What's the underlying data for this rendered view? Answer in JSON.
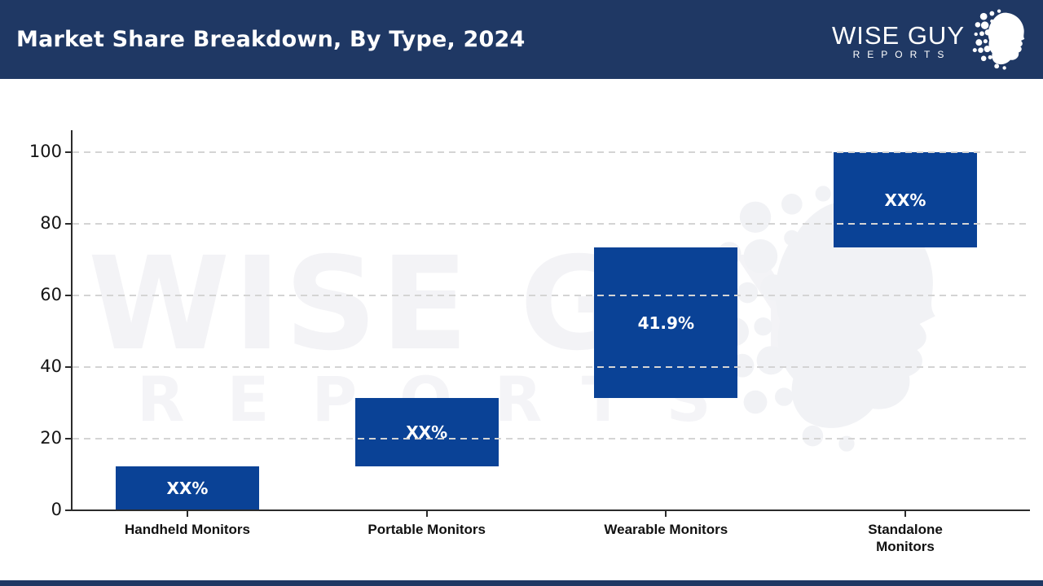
{
  "header": {
    "title": "Market Share Breakdown, By Type, 2024",
    "logo": {
      "brand": "WISE GUY",
      "sub": "REPORTS"
    }
  },
  "watermark": {
    "brand": "WISE GUY",
    "sub": "REPORTS"
  },
  "chart_data": {
    "type": "bar",
    "variant": "floating-range-bars (waterfall style segments)",
    "title": "Market Share Breakdown, By Type, 2024",
    "categories": [
      "Handheld Monitors",
      "Portable Monitors",
      "Wearable Monitors",
      "Standalone\nMonitors"
    ],
    "bars": [
      {
        "category": "Handheld Monitors",
        "start": 0,
        "end": 12.2,
        "label": "XX%"
      },
      {
        "category": "Portable Monitors",
        "start": 12.2,
        "end": 31.4,
        "label": "XX%"
      },
      {
        "category": "Wearable Monitors",
        "start": 31.4,
        "end": 73.3,
        "label": "41.9%"
      },
      {
        "category": "Standalone Monitors",
        "start": 73.3,
        "end": 100,
        "label": "XX%"
      }
    ],
    "ylim": [
      0,
      100
    ],
    "yticks": [
      0,
      20,
      40,
      60,
      80,
      100
    ],
    "grid": "horizontal dashed gridlines, drawn above bars",
    "legend": "none",
    "xlabel": "",
    "ylabel": "",
    "bar_color": "#0a4296"
  },
  "colors": {
    "header_bg": "#1f3864",
    "footer_bg": "#1f3864",
    "bar_blue": "#0a4296",
    "gridline": "#d4d4d4",
    "axis": "#2b2b2b",
    "tick_text": "#141414",
    "watermark": "#f3f3f6"
  }
}
